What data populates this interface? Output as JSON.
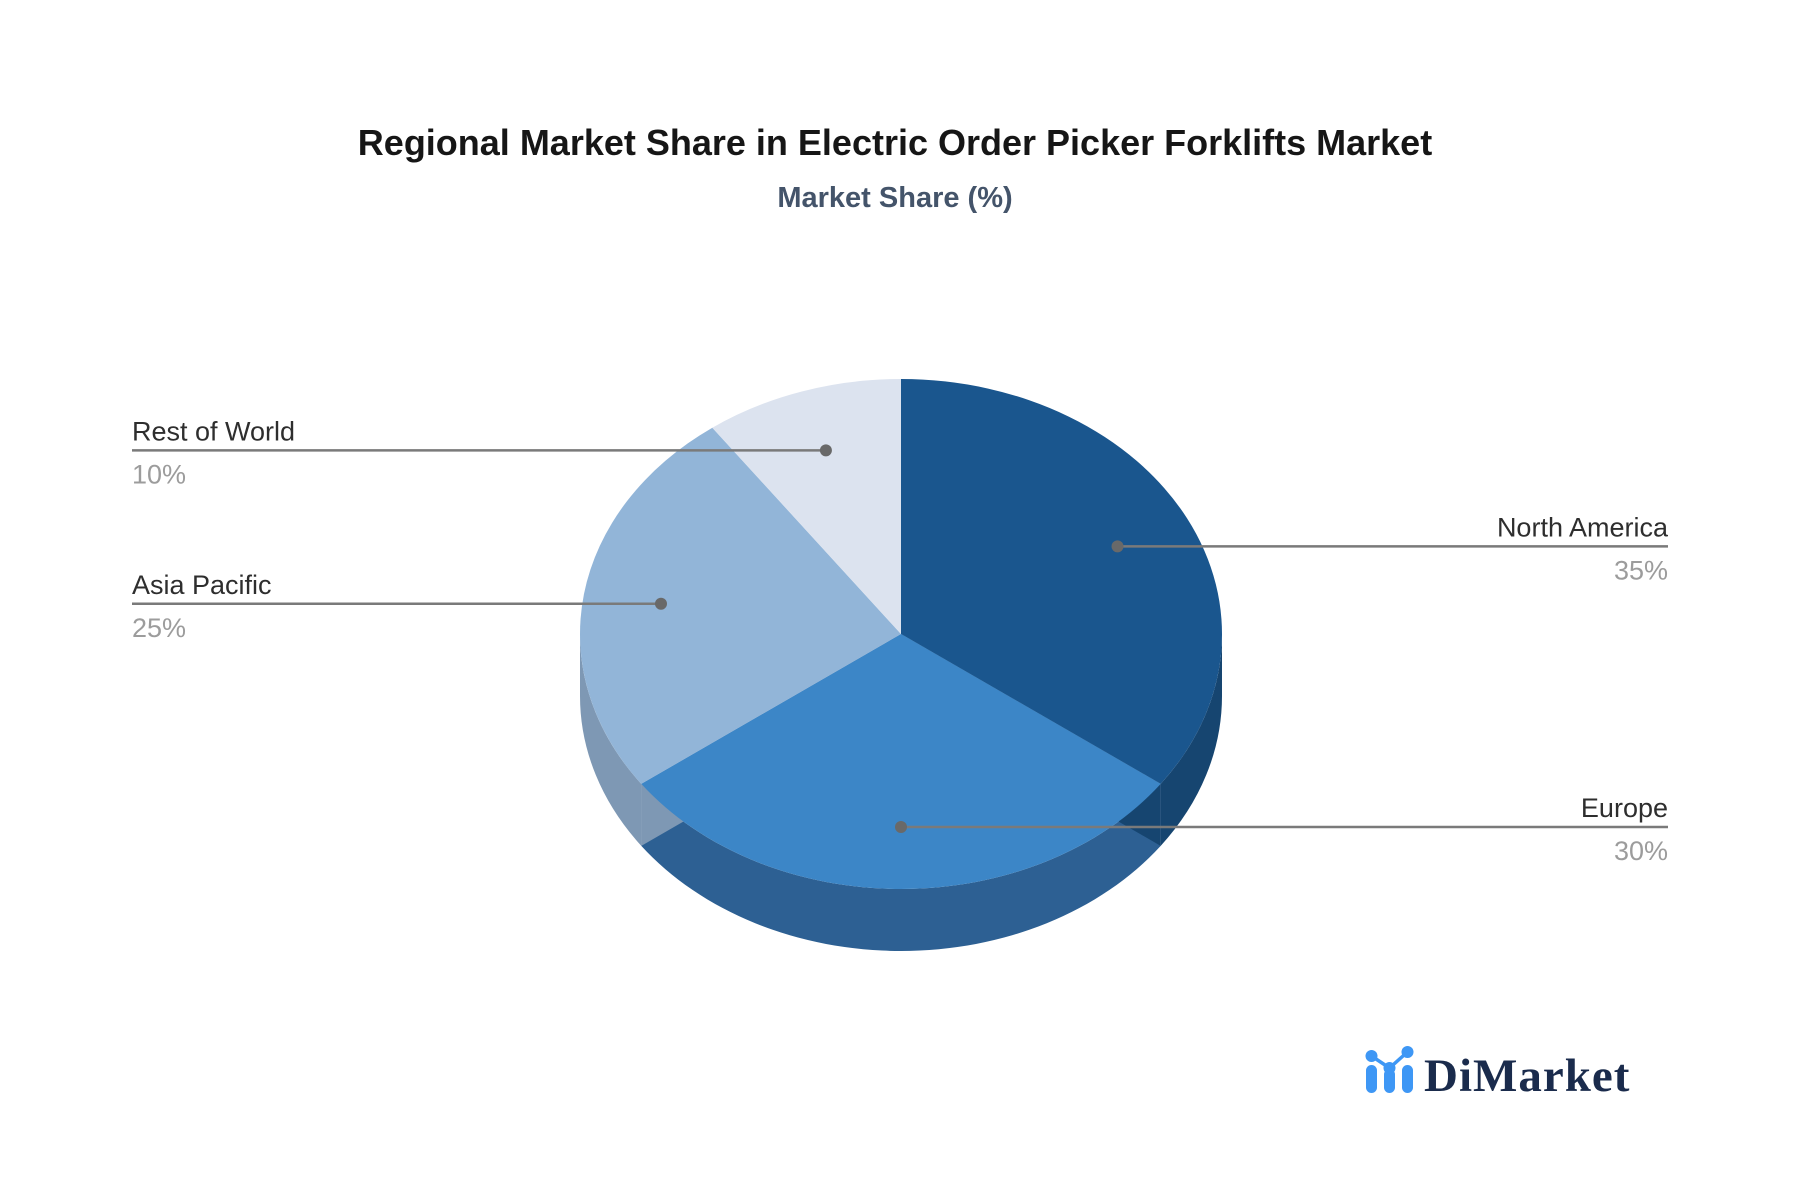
{
  "chart_data": {
    "type": "pie",
    "is_3d": true,
    "title": "Regional Market Share in Electric Order Picker Forklifts Market",
    "subtitle": "Market Share (%)",
    "unit": "%",
    "start_angle_deg": 0,
    "direction": "clockwise",
    "slices": [
      {
        "name": "North America",
        "value": 35,
        "pct_label": "35%",
        "color": "#1A568E",
        "side_color": "#164570",
        "label_side": "right"
      },
      {
        "name": "Europe",
        "value": 30,
        "pct_label": "30%",
        "color": "#3C86C7",
        "side_color": "#2D6093",
        "label_side": "right"
      },
      {
        "name": "Asia Pacific",
        "value": 25,
        "pct_label": "25%",
        "color": "#92B5D8",
        "side_color": "#7E98B4",
        "label_side": "left"
      },
      {
        "name": "Rest of World",
        "value": 10,
        "pct_label": "10%",
        "color": "#DCE3EF",
        "side_color": "#C9D3E4",
        "label_side": "left"
      }
    ],
    "legend_position": "none",
    "grid": false
  },
  "styles": {
    "background": "#FFFFFF",
    "title_color": "#161616",
    "subtitle_color": "#44546A",
    "label_color": "#2E2E2E",
    "pct_color": "#9C9C9C",
    "leader_line_color": "#7A7A7A",
    "leader_dot_color": "#696969"
  },
  "logo": {
    "text": "DiMarket",
    "icon": "bar-chart-with-dots-icon",
    "icon_color": "#3E97F5",
    "text_color": "#1A2B4C"
  }
}
